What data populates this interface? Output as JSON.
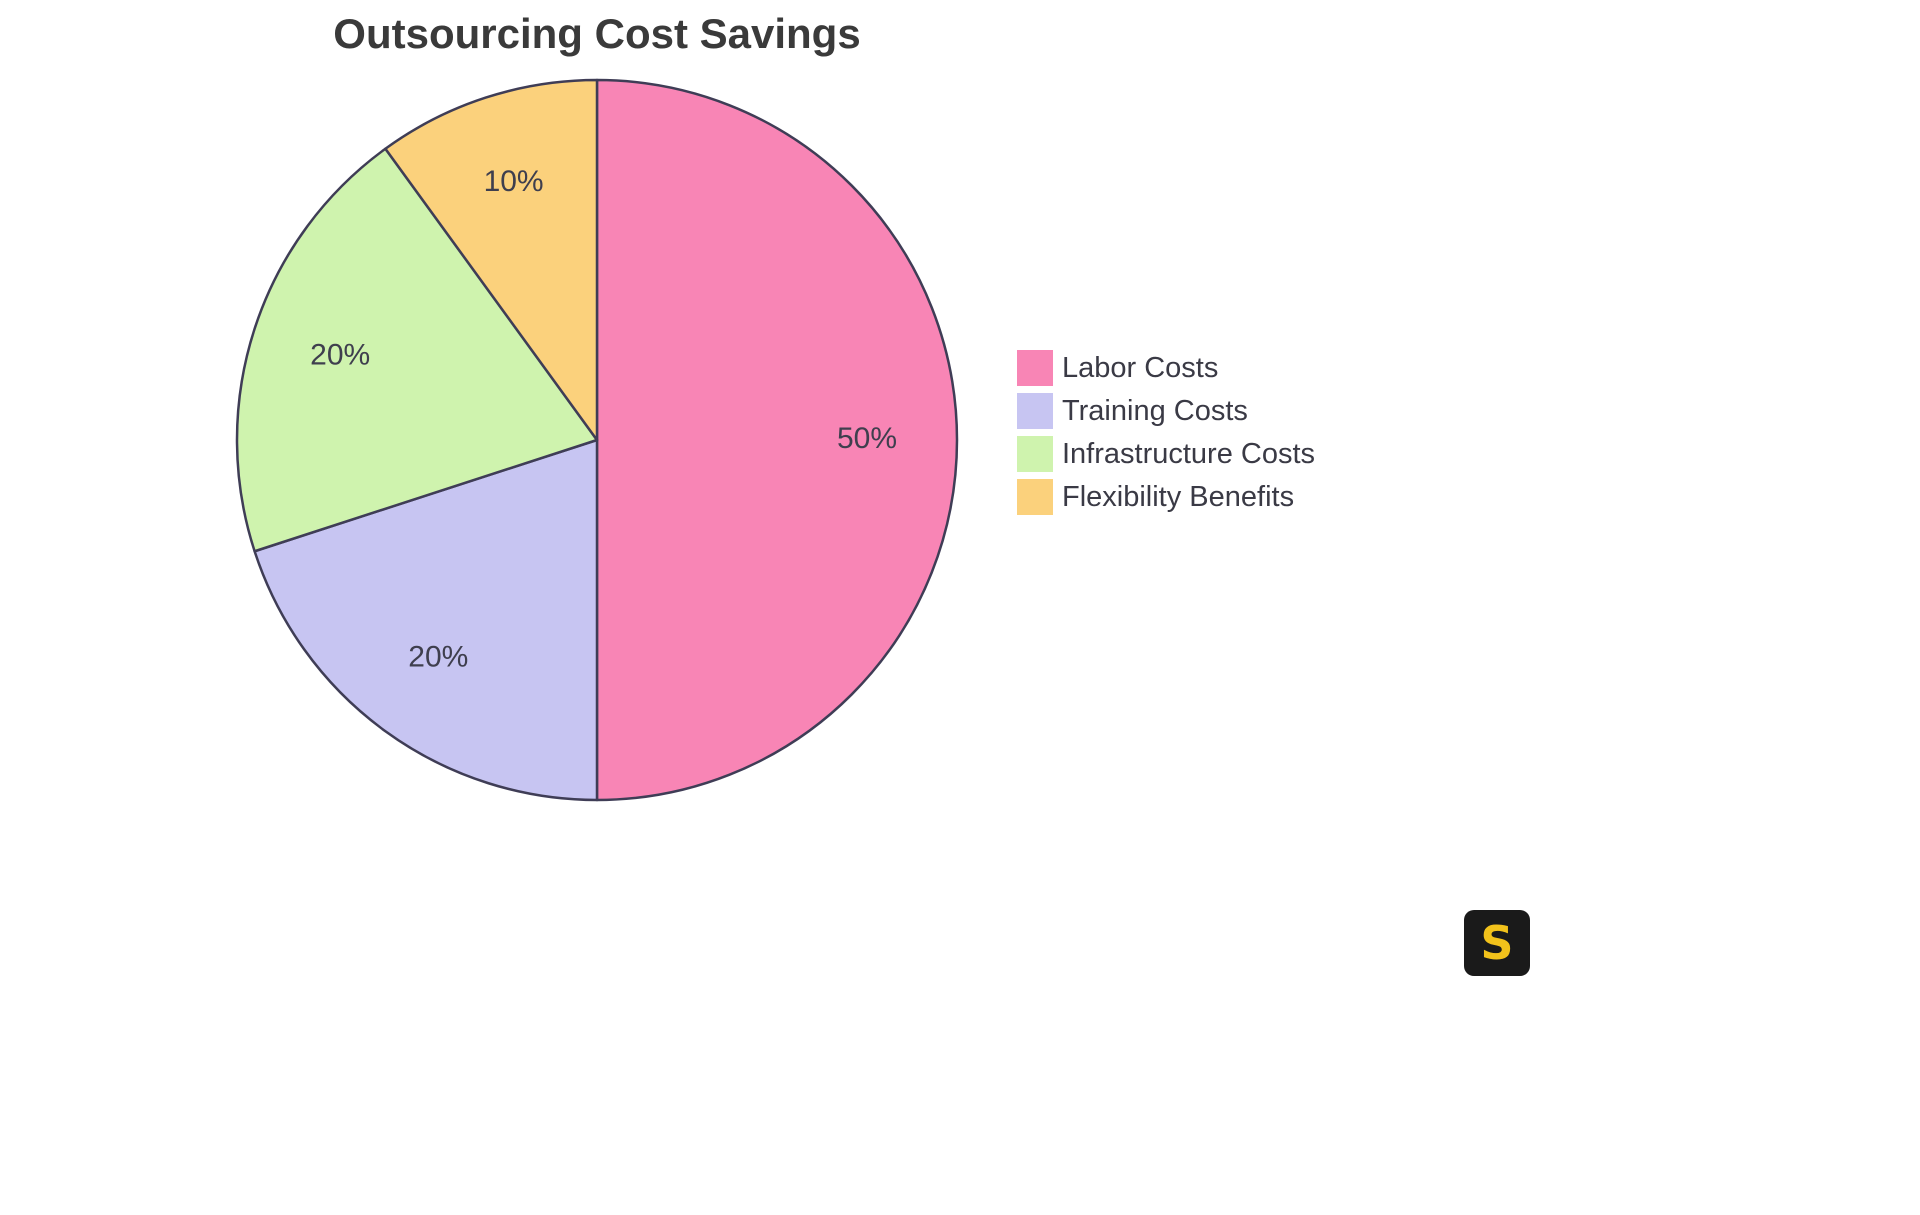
{
  "page": {
    "background": "#ffffff"
  },
  "chart_data": {
    "type": "pie",
    "title": "Outsourcing Cost Savings",
    "categories": [
      "Labor Costs",
      "Training Costs",
      "Infrastructure Costs",
      "Flexibility Benefits"
    ],
    "values": [
      50,
      20,
      20,
      10
    ],
    "pct_labels": [
      "50%",
      "20%",
      "20%",
      "10%"
    ],
    "colors": [
      "#F885B5",
      "#C7C5F2",
      "#CFF3AE",
      "#FBD17C"
    ],
    "stroke_color": "#3F3D56",
    "label_color": "#3F3F4E",
    "start_angle_deg": 0,
    "direction": "clockwise",
    "legend_position": "right",
    "grid": false
  },
  "logo": {
    "letter": "S",
    "bg_color": "#1A1A1A",
    "fg_color": "#F2C21B"
  }
}
